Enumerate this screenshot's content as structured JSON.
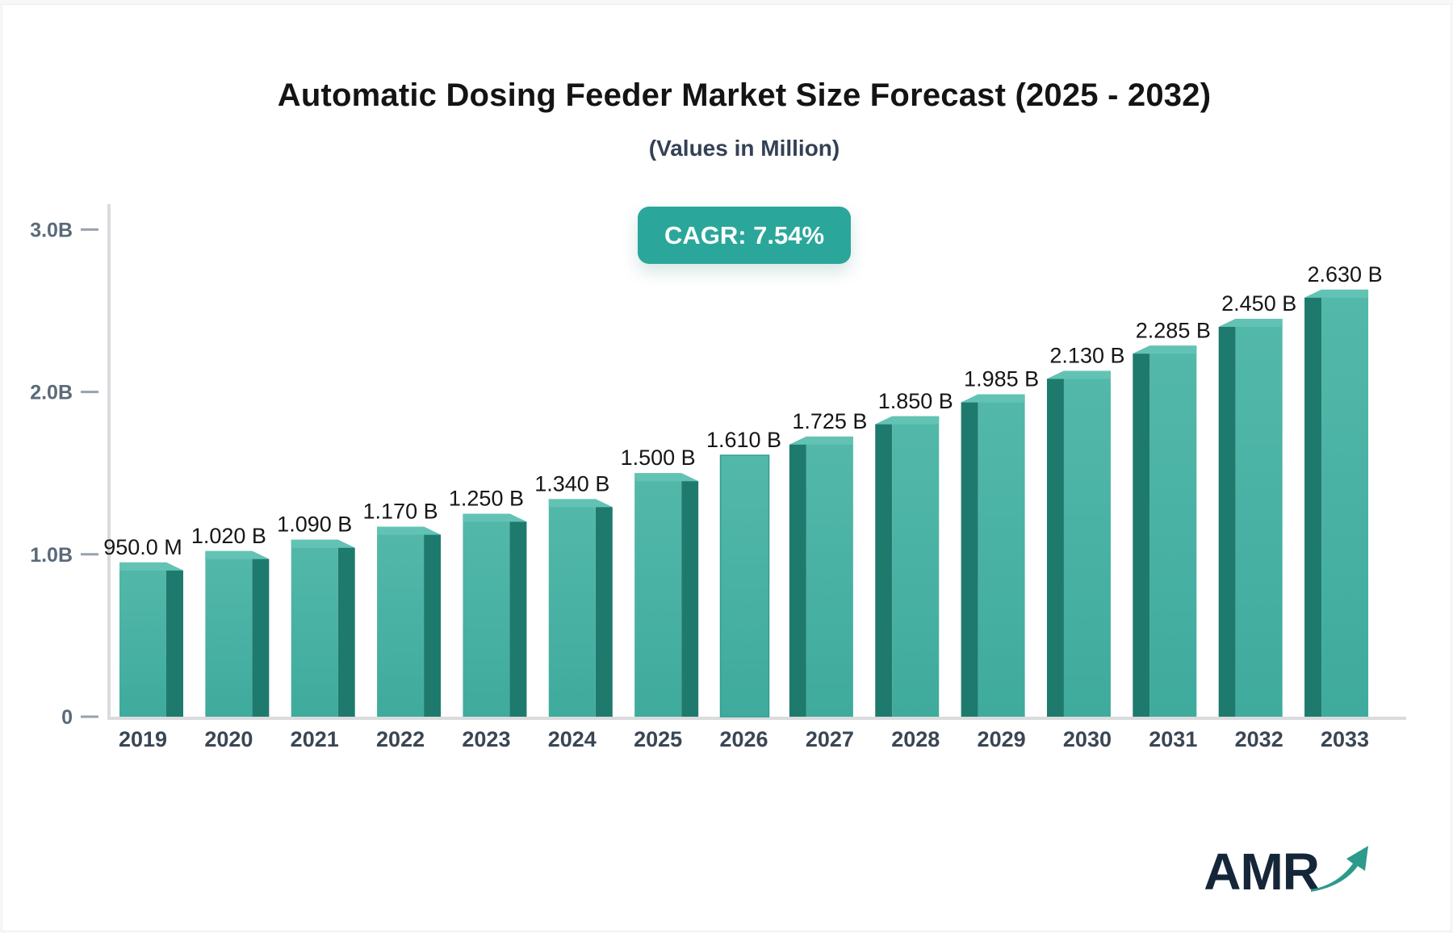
{
  "page": {
    "title": "Automatic Dosing Feeder Market Size Forecast (2025 - 2032)",
    "subtitle": "(Values in Million)",
    "cagr_label": "CAGR: 7.54%",
    "logo_text": "AMR"
  },
  "chart_data": {
    "type": "bar",
    "title": "Automatic Dosing Feeder Market Size Forecast (2025 - 2032)",
    "subtitle": "(Values in Million)",
    "annotation": "CAGR: 7.54%",
    "xlabel": "",
    "ylabel": "",
    "ylim": [
      0,
      3
    ],
    "grid": false,
    "legend": "none",
    "categories": [
      "2019",
      "2020",
      "2021",
      "2022",
      "2023",
      "2024",
      "2025",
      "2026",
      "2027",
      "2028",
      "2029",
      "2030",
      "2031",
      "2032",
      "2033"
    ],
    "values_billions": [
      0.95,
      1.02,
      1.09,
      1.17,
      1.25,
      1.34,
      1.5,
      1.61,
      1.725,
      1.85,
      1.985,
      2.13,
      2.285,
      2.45,
      2.63
    ],
    "bar_labels": [
      "950.0 M",
      "1.020 B",
      "1.090 B",
      "1.170 B",
      "1.250 B",
      "1.340 B",
      "1.500 B",
      "1.610 B",
      "1.725 B",
      "1.850 B",
      "1.985 B",
      "2.130 B",
      "2.285 B",
      "2.450 B",
      "2.630 B"
    ],
    "y_ticks": [
      {
        "label": "0",
        "value": 0
      },
      {
        "label": "1.0B",
        "value": 1
      },
      {
        "label": "2.0B",
        "value": 2
      },
      {
        "label": "3.0B",
        "value": 3
      }
    ],
    "colors": {
      "face_top": "#53b8aa",
      "face_bottom": "#3fab9d",
      "side": "#1f7a6e",
      "top": "#62c3b4",
      "flat_edge": "#2f9e92",
      "axis": "#d9dbdd",
      "tick_dash": "#98a2ac",
      "badge": "#2aa79a",
      "logo_arrow": "#2c9a8d"
    }
  }
}
